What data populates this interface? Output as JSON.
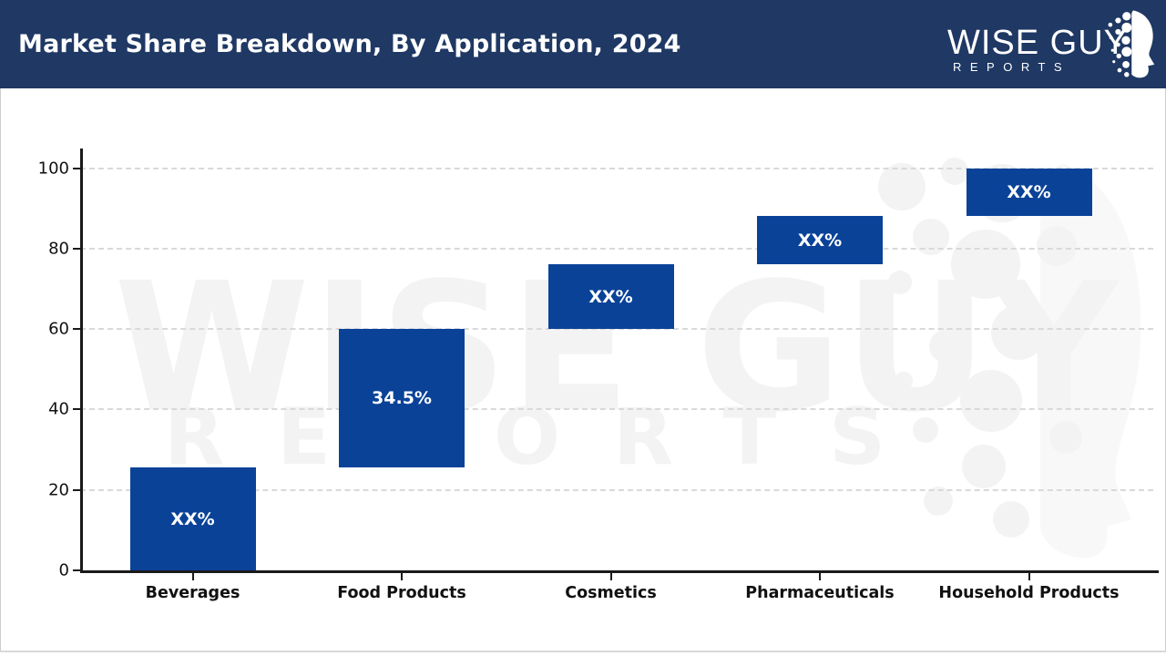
{
  "header": {
    "title": "Market Share Breakdown, By Application, 2024",
    "logo": {
      "line1": "WISE GUY",
      "line2": "REPORTS"
    }
  },
  "watermark": {
    "line1": "WISE GUY",
    "line2": "REPORTS"
  },
  "colors": {
    "header_bg": "#1F3864",
    "bar": "#0A4298",
    "grid": "#D9D9D9",
    "axis": "#1A1A1A",
    "watermark": "#F3F3F3",
    "bar_label": "#FFFFFF"
  },
  "chart_data": {
    "type": "bar",
    "subtype": "floating-waterfall",
    "title": "Market Share Breakdown, By Application, 2024",
    "categories": [
      "Beverages",
      "Food Products",
      "Cosmetics",
      "Pharmaceuticals",
      "Household Products"
    ],
    "series": [
      {
        "name": "Market Share",
        "segments": [
          {
            "start": 0,
            "end": 25.5,
            "label": "XX%"
          },
          {
            "start": 25.5,
            "end": 60,
            "label": "34.5%"
          },
          {
            "start": 60,
            "end": 76,
            "label": "XX%"
          },
          {
            "start": 76,
            "end": 88,
            "label": "XX%"
          },
          {
            "start": 88,
            "end": 100,
            "label": "XX%"
          }
        ]
      }
    ],
    "yticks": [
      0,
      20,
      40,
      60,
      80,
      100
    ],
    "ylim": [
      0,
      105
    ],
    "xlabel": "",
    "ylabel": "",
    "legend": "none",
    "grid": "horizontal-dashed"
  }
}
